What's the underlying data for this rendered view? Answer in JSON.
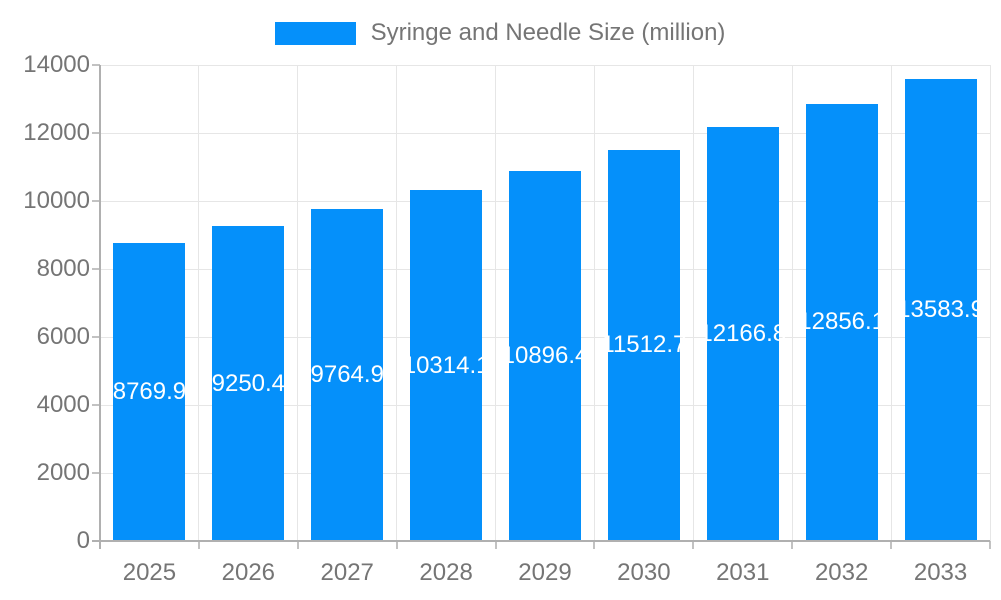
{
  "chart_data": {
    "type": "bar",
    "title": "Syringe and Needle Size (million)",
    "legend": {
      "label": "Syringe and Needle Size (million)",
      "position": "top"
    },
    "categories": [
      "2025",
      "2026",
      "2027",
      "2028",
      "2029",
      "2030",
      "2031",
      "2032",
      "2033"
    ],
    "values": [
      8769.9,
      9250.4,
      9764.9,
      10314.1,
      10896.4,
      11512.7,
      12166.8,
      12856.1,
      13583.9
    ],
    "value_labels": [
      "8769.9",
      "9250.4",
      "9764.9",
      "10314.1",
      "10896.4",
      "11512.7",
      "12166.8",
      "12856.1",
      "13583.9"
    ],
    "xlabel": "",
    "ylabel": "",
    "ylim": [
      0,
      14000
    ],
    "yticks": [
      0,
      2000,
      4000,
      6000,
      8000,
      10000,
      12000,
      14000
    ],
    "grid": true,
    "colors": {
      "bar": "#0590fa",
      "bar_value_text": "#ffffff",
      "axis_text": "#757575",
      "grid_line": "#e6e6e6",
      "axis_line": "#b0b0b0"
    }
  }
}
